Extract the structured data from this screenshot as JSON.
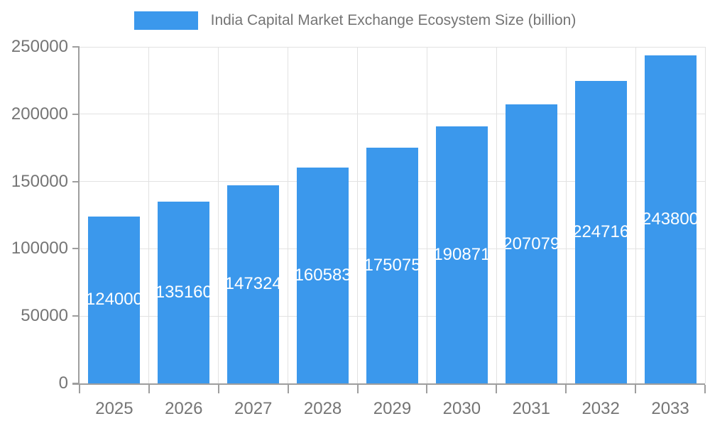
{
  "legend": {
    "label": "India Capital Market Exchange Ecosystem Size (billion)"
  },
  "chart_data": {
    "type": "bar",
    "title": "India Capital Market Exchange Ecosystem Size (billion)",
    "categories": [
      "2025",
      "2026",
      "2027",
      "2028",
      "2029",
      "2030",
      "2031",
      "2032",
      "2033"
    ],
    "values": [
      124000,
      135160,
      147324,
      160583,
      175075,
      190871,
      207079,
      224716,
      243800
    ],
    "bar_labels": [
      "124000",
      "135160",
      "147324",
      "160583",
      "175075",
      "190871",
      "207079",
      "224716",
      "243800"
    ],
    "xlabel": "",
    "ylabel": "",
    "ylim": [
      0,
      250000
    ],
    "ytick_step": 50000,
    "ytick_labels": [
      "0",
      "50000",
      "100000",
      "150000",
      "200000",
      "250000"
    ],
    "grid": true,
    "legend_position": "top-center",
    "colors": {
      "bar": "#3b98ec",
      "bar_label": "#ffffff",
      "axis": "#9e9e9e",
      "grid": "#e2e2e2",
      "tick_label": "#757575",
      "legend_text": "#757575",
      "background": "#ffffff"
    }
  }
}
